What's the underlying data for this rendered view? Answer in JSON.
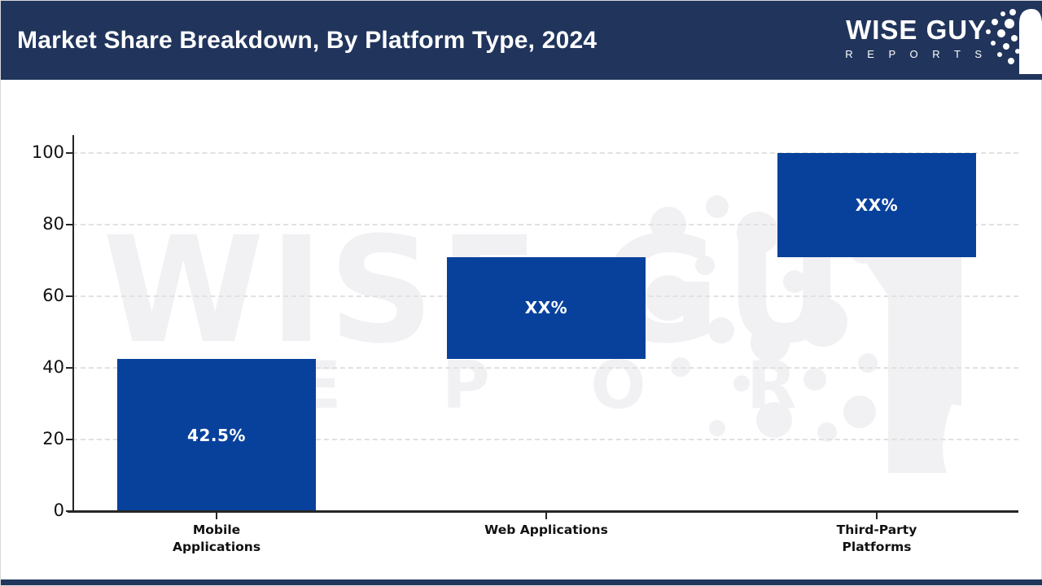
{
  "header": {
    "title": "Market Share Breakdown, By Platform Type, 2024",
    "logo": {
      "name_top": "WISE GUY",
      "name_bottom": "R E P O R T S"
    }
  },
  "watermark": {
    "line1": "WISE GUY",
    "line2": "R E P O R T S"
  },
  "chart_data": {
    "type": "bar",
    "subtype": "stacked-waterfall",
    "title": "Market Share Breakdown, By Platform Type, 2024",
    "categories": [
      "Mobile Applications",
      "Web Applications",
      "Third-Party Platforms"
    ],
    "category_label_lines": [
      [
        "Mobile",
        "Applications"
      ],
      [
        "Web Applications"
      ],
      [
        "Third-Party",
        "Platforms"
      ]
    ],
    "segments": [
      {
        "category": "Mobile Applications",
        "start": 0,
        "end": 42.5,
        "value": 42.5,
        "value_label": "42.5%"
      },
      {
        "category": "Web Applications",
        "start": 42.5,
        "end": 71,
        "value": 28.5,
        "value_label": "XX%"
      },
      {
        "category": "Third-Party Platforms",
        "start": 71,
        "end": 100,
        "value": 29,
        "value_label": "XX%"
      }
    ],
    "xlabel": "",
    "ylabel": "",
    "ylim": [
      0,
      100
    ],
    "yticks": [
      0,
      20,
      40,
      60,
      80,
      100
    ],
    "grid": "horizontal-dashed",
    "legend": "none",
    "bar_color": "#08419c",
    "bar_label_color": "#ffffff",
    "axis_color": "#262626",
    "gridline_color": "#e1e1e1",
    "tick_label_color": "#111111"
  },
  "colors": {
    "header_bg": "#21355c",
    "footer_bg": "#21355c",
    "watermark": "#f1f1f3",
    "page_bg": "#ffffff",
    "page_border": "#d9d9d9",
    "logo_fg": "#ffffff"
  }
}
